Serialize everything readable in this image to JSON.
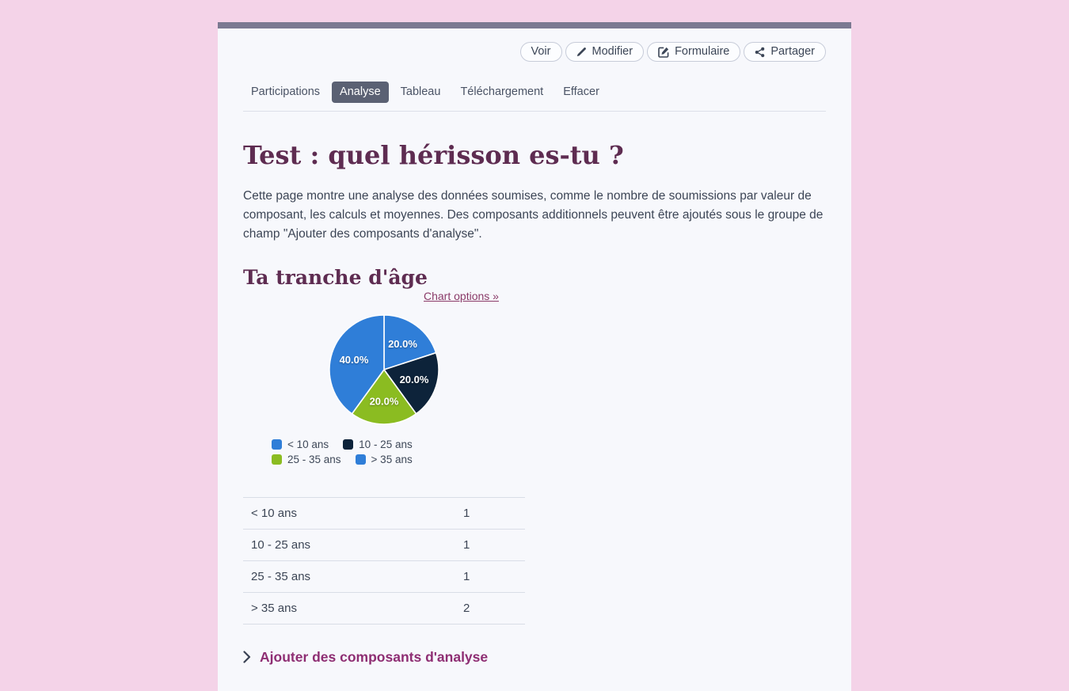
{
  "theme": {
    "page_bg": "#f4d3e8",
    "panel_bg": "#f7f8fc",
    "topbar_color": "#7b7991",
    "heading_color": "#5e2c51",
    "link_color": "#8a3a68",
    "accent_link_color": "#8e2e73",
    "active_tab_bg": "#5b6173"
  },
  "toolbar": {
    "buttons": [
      {
        "label": "Voir",
        "icon": null
      },
      {
        "label": "Modifier",
        "icon": "pencil-icon"
      },
      {
        "label": "Formulaire",
        "icon": "edit-square-icon"
      },
      {
        "label": "Partager",
        "icon": "share-icon"
      }
    ]
  },
  "tabs": [
    {
      "label": "Participations",
      "active": false
    },
    {
      "label": "Analyse",
      "active": true
    },
    {
      "label": "Tableau",
      "active": false
    },
    {
      "label": "Téléchargement",
      "active": false
    },
    {
      "label": "Effacer",
      "active": false
    }
  ],
  "form": {
    "title": "Test : quel hérisson es-tu ?",
    "description": "Cette page montre une analyse des données soumises, comme le nombre de soumissions par valeur de composant, les calculs et moyennes. Des composants additionnels peuvent être ajoutés sous le groupe de champ \"Ajouter des composants d'analyse\"."
  },
  "analysis": {
    "section_title": "Ta tranche d'âge",
    "chart_options_label": "Chart options »",
    "add_components_label": "Ajouter des composants d'analyse",
    "chevron_icon": "chevron-right-icon"
  },
  "chart_data": {
    "type": "pie",
    "title": "Ta tranche d'âge",
    "categories": [
      "< 10 ans",
      "10 - 25 ans",
      "25 - 35 ans",
      "> 35 ans"
    ],
    "values": [
      1,
      1,
      1,
      2
    ],
    "percent_labels": [
      "20.0%",
      "20.0%",
      "20.0%",
      "40.0%"
    ],
    "colors": [
      "#2f7ed8",
      "#0d233a",
      "#8bbc21",
      "#2f7ed8"
    ],
    "start_angle_deg": 0,
    "direction": "clockwise",
    "legend_position": "bottom-center",
    "slice_border_color": "#ffffff"
  },
  "table": {
    "rows": [
      {
        "label": "< 10 ans",
        "value": "1"
      },
      {
        "label": "10 - 25 ans",
        "value": "1"
      },
      {
        "label": "25 - 35 ans",
        "value": "1"
      },
      {
        "label": "> 35 ans",
        "value": "2"
      }
    ]
  }
}
